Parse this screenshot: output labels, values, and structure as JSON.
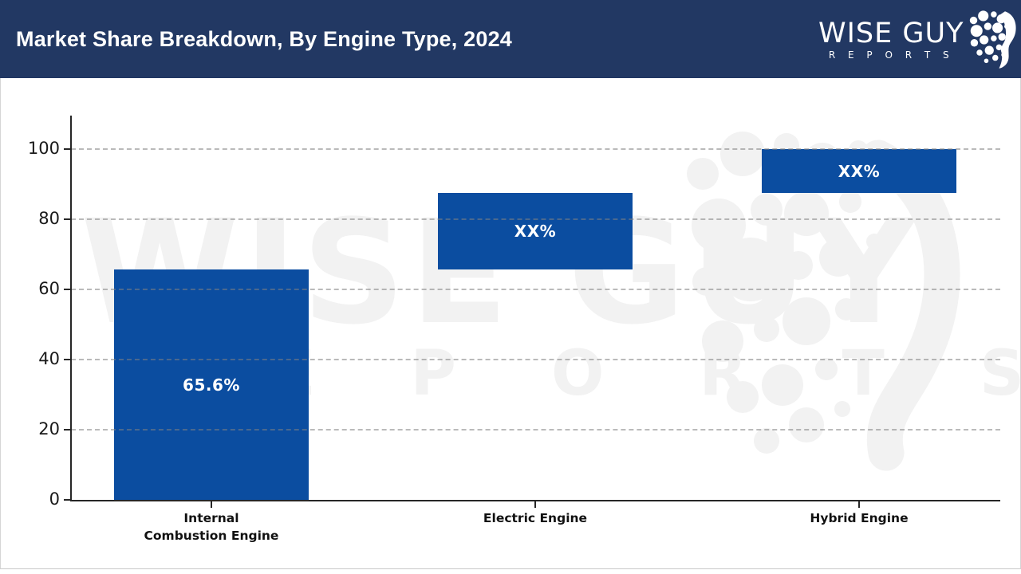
{
  "header": {
    "title": "Market Share Breakdown, By Engine Type, 2024",
    "logo": {
      "line1": "WISE GUY",
      "line2": "R E P O R T S"
    }
  },
  "watermark": {
    "line1": "WISE GUY",
    "line2": "R E P O R T S"
  },
  "chart_data": {
    "type": "bar",
    "variant": "floating-waterfall",
    "title": "Market Share Breakdown, By Engine Type, 2024",
    "categories": [
      "Internal Combustion Engine",
      "Electric Engine",
      "Hybrid Engine"
    ],
    "category_label_lines": [
      [
        "Internal",
        "Combustion Engine"
      ],
      [
        "Electric Engine"
      ],
      [
        "Hybrid Engine"
      ]
    ],
    "segments": [
      {
        "category": "Internal Combustion Engine",
        "start": 0,
        "end": 65.6,
        "label": "65.6%"
      },
      {
        "category": "Electric Engine",
        "start": 65.6,
        "end": 87.5,
        "label": "XX%"
      },
      {
        "category": "Hybrid Engine",
        "start": 87.5,
        "end": 100,
        "label": "XX%"
      }
    ],
    "xlabel": "",
    "ylabel": "",
    "yticks": [
      0,
      20,
      40,
      60,
      80,
      100
    ],
    "ylim": [
      0,
      109.5
    ],
    "grid": {
      "axis": "y",
      "style": "dashed",
      "drawn_above_bars": true
    },
    "legend": null,
    "colors": {
      "bar": "#0b4da0",
      "header_bg": "#223863",
      "grid": "#828282",
      "axis": "#262626",
      "tick_label": "#1a1a1a",
      "value_label": "#ffffff",
      "watermark": "#f2f2f2"
    }
  }
}
